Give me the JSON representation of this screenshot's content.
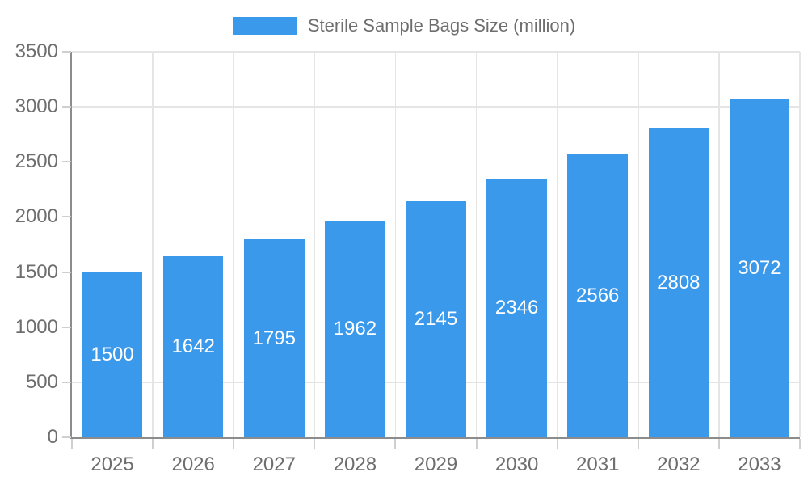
{
  "chart_data": {
    "type": "bar",
    "title": "Sterile Sample Bags Size (million)",
    "categories": [
      "2025",
      "2026",
      "2027",
      "2028",
      "2029",
      "2030",
      "2031",
      "2032",
      "2033"
    ],
    "values": [
      1500,
      1642,
      1795,
      1962,
      2145,
      2346,
      2566,
      2808,
      3072
    ],
    "xlabel": "",
    "ylabel": "",
    "ylim": [
      0,
      3500
    ],
    "y_ticks": [
      0,
      500,
      1000,
      1500,
      2000,
      2500,
      3000,
      3500
    ],
    "legend_position": "top",
    "grid": true,
    "value_label_style": "inside-center-white",
    "colors": {
      "bar": "#3b99ec",
      "label_text": "#ffffff",
      "axis_text": "#6e6e6e",
      "grid_line": "#e5e5e5",
      "tick_line": "#cfcfcf",
      "axis_line": "#8c8c8c",
      "background": "#ffffff"
    }
  }
}
